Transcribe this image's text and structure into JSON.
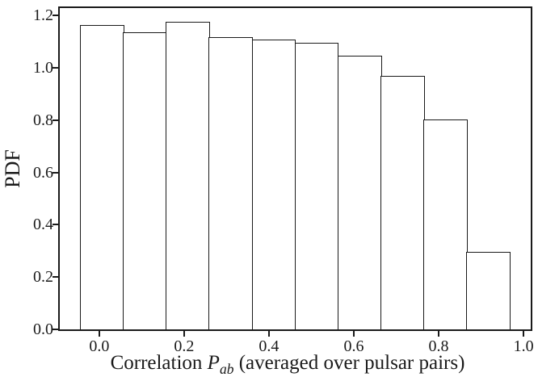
{
  "figure": {
    "background": "#ffffff",
    "line_color": "#1a1a1a"
  },
  "chart_data": {
    "type": "bar",
    "subtype": "histogram",
    "title": "",
    "xlabel": {
      "full": "Correlation Pab (averaged over pulsar pairs)",
      "prefix": "Correlation ",
      "var": "P",
      "sub": "ab",
      "suffix": " (averaged over pulsar pairs)"
    },
    "ylabel": "PDF",
    "bin_edges": [
      -0.044,
      0.0572,
      0.1584,
      0.2596,
      0.3608,
      0.462,
      0.5632,
      0.6644,
      0.7656,
      0.8668,
      0.968
    ],
    "values": [
      1.162,
      1.136,
      1.177,
      1.118,
      1.108,
      1.094,
      1.047,
      0.97,
      0.803,
      0.296
    ],
    "xlim": [
      -0.093,
      1.017
    ],
    "ylim": [
      0,
      1.228
    ],
    "xticks": [
      0.0,
      0.2,
      0.4,
      0.6,
      0.8,
      1.0
    ],
    "xtick_labels": [
      "0.0",
      "0.2",
      "0.4",
      "0.6",
      "0.8",
      "1.0"
    ],
    "yticks": [
      0.0,
      0.2,
      0.4,
      0.6,
      0.8,
      1.0,
      1.2
    ],
    "ytick_labels": [
      "0.0",
      "0.2",
      "0.4",
      "0.6",
      "0.8",
      "1.0",
      "1.2"
    ],
    "grid": false,
    "legend": null,
    "bar_fill": "#ffffff",
    "bar_edge": "#1a1a1a"
  }
}
